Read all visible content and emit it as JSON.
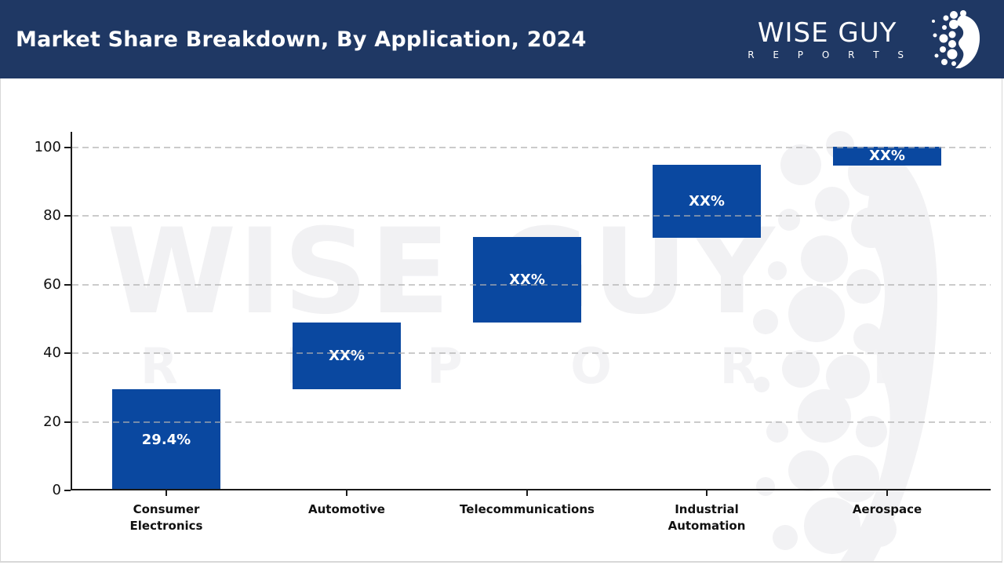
{
  "header": {
    "title": "Market Share Breakdown, By Application, 2024",
    "bg_color": "#1f3864",
    "logo": {
      "line1": "WISE GUY",
      "line2": "R E P O R T S"
    }
  },
  "watermark": {
    "line1": "WISE GUY",
    "line2": "R E P O R T S"
  },
  "chart_data": {
    "type": "bar",
    "subtype": "waterfall-segments",
    "title": "Market Share Breakdown, By Application, 2024",
    "categories": [
      {
        "name": "Consumer Electronics",
        "lines": [
          "Consumer",
          "Electronics"
        ]
      },
      {
        "name": "Automotive",
        "lines": [
          "Automotive"
        ]
      },
      {
        "name": "Telecommunications",
        "lines": [
          "Telecommunications"
        ]
      },
      {
        "name": "Industrial Automation",
        "lines": [
          "Industrial",
          "Automation"
        ]
      },
      {
        "name": "Aerospace",
        "lines": [
          "Aerospace"
        ]
      }
    ],
    "series": [
      {
        "name": "Market share (%)",
        "segments": [
          {
            "category": "Consumer Electronics",
            "start": 0,
            "end": 29.4,
            "label": "29.4%"
          },
          {
            "category": "Automotive",
            "start": 29.4,
            "end": 48.9,
            "label": "XX%"
          },
          {
            "category": "Telecommunications",
            "start": 48.9,
            "end": 73.8,
            "label": "XX%"
          },
          {
            "category": "Industrial Automation",
            "start": 73.7,
            "end": 94.9,
            "label": "XX%"
          },
          {
            "category": "Aerospace",
            "start": 94.7,
            "end": 100.2,
            "label": "XX%"
          }
        ]
      }
    ],
    "yticks": [
      0,
      20,
      40,
      60,
      80,
      100
    ],
    "ylim": [
      0,
      105
    ],
    "xlabel": "",
    "ylabel": "",
    "grid": "horizontal-dashed",
    "legend": "none",
    "bar_color": "#0a48a0",
    "bar_label_color": "#ffffff",
    "gridline_color": "#d9d9d9",
    "axis_color": "#1a1a1a"
  }
}
